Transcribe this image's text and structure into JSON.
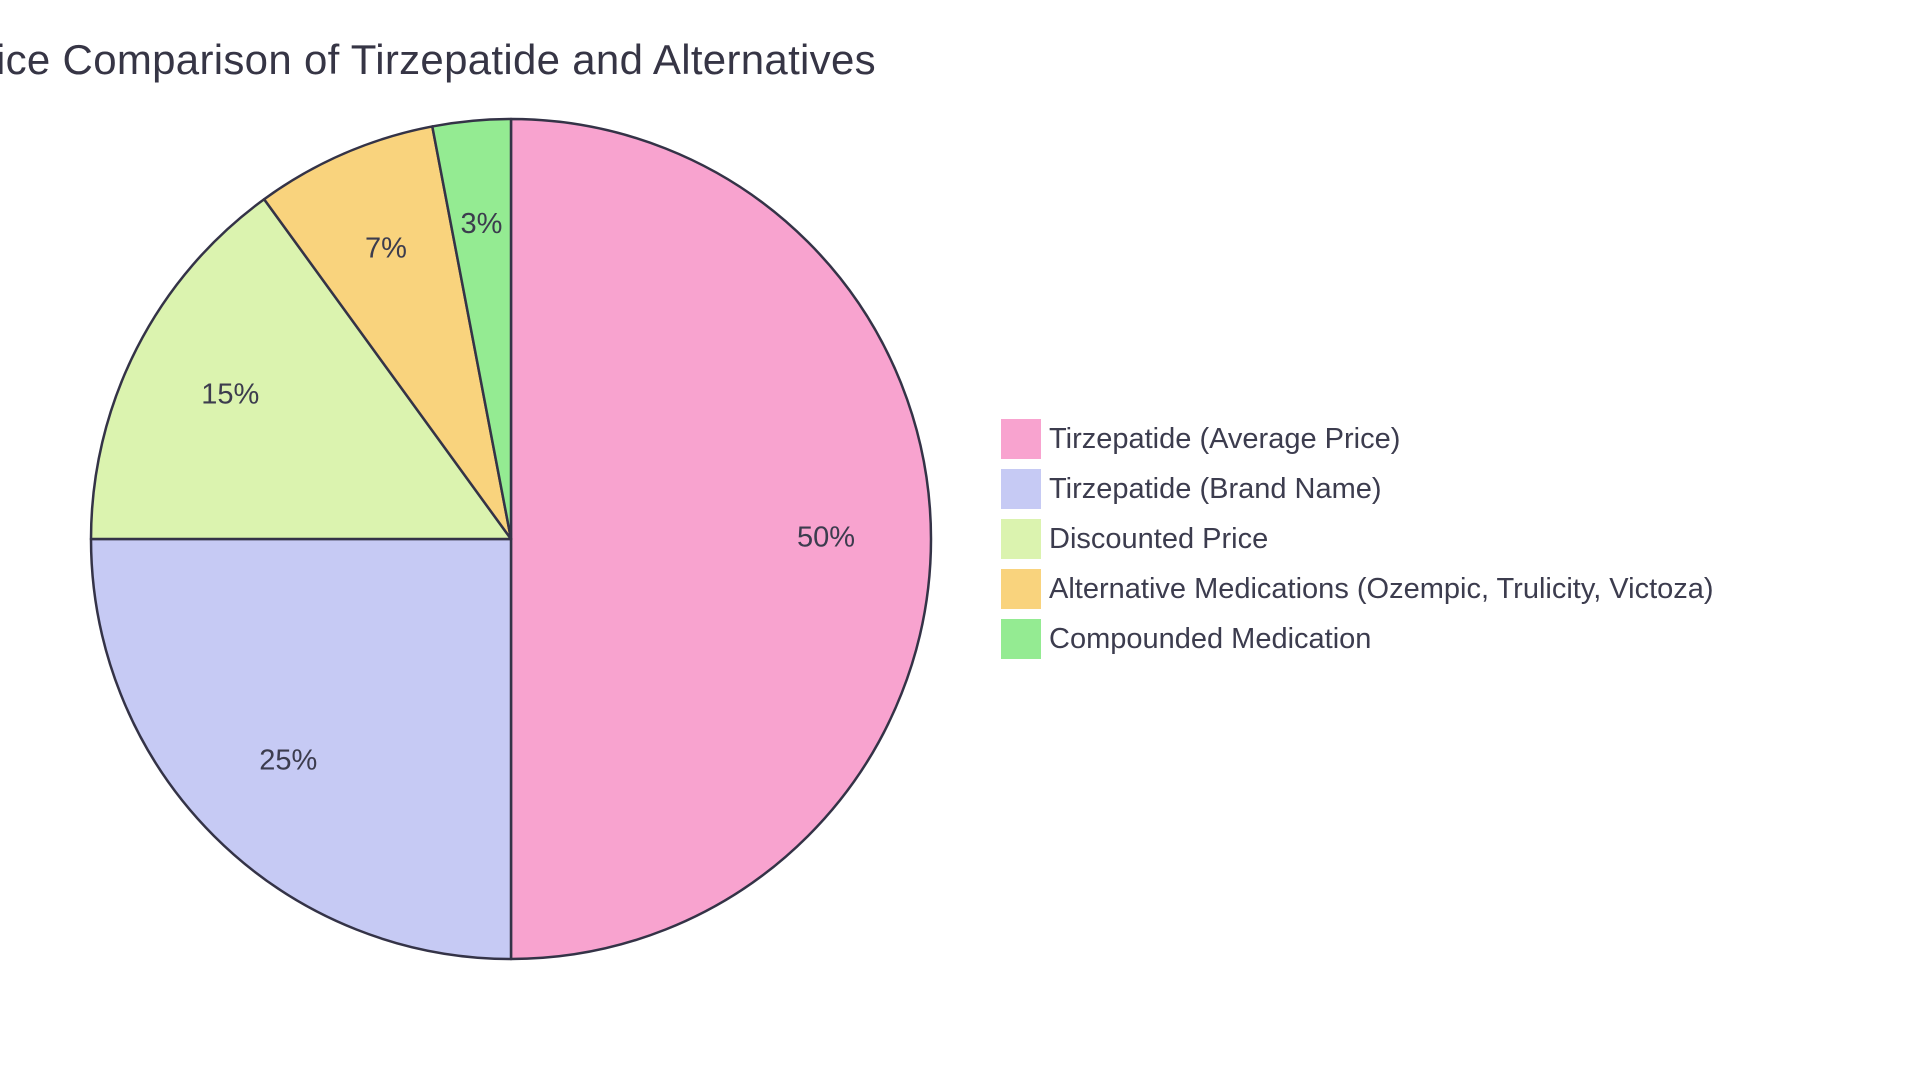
{
  "page": {
    "background": "#FFFFFF"
  },
  "chart_data": {
    "type": "pie",
    "title": "ice Comparison of Tirzepatide and Alternatives",
    "start_angle_deg": 0,
    "direction": "clockwise",
    "legend_position": "right",
    "stroke_color": "#343347",
    "label_color": "#3C3C4E",
    "slices": [
      {
        "label": "Tirzepatide (Average Price)",
        "value": 50,
        "percent_label": "50%",
        "color": "#F8A3CF"
      },
      {
        "label": "Tirzepatide (Brand Name)",
        "value": 25,
        "percent_label": "25%",
        "color": "#C6CAF4"
      },
      {
        "label": "Discounted Price",
        "value": 15,
        "percent_label": "15%",
        "color": "#DBF3AF"
      },
      {
        "label": "Alternative Medications (Ozempic, Trulicity, Victoza)",
        "value": 7,
        "percent_label": "7%",
        "color": "#F9D37D"
      },
      {
        "label": "Compounded Medication",
        "value": 3,
        "percent_label": "3%",
        "color": "#94EB92"
      }
    ]
  }
}
